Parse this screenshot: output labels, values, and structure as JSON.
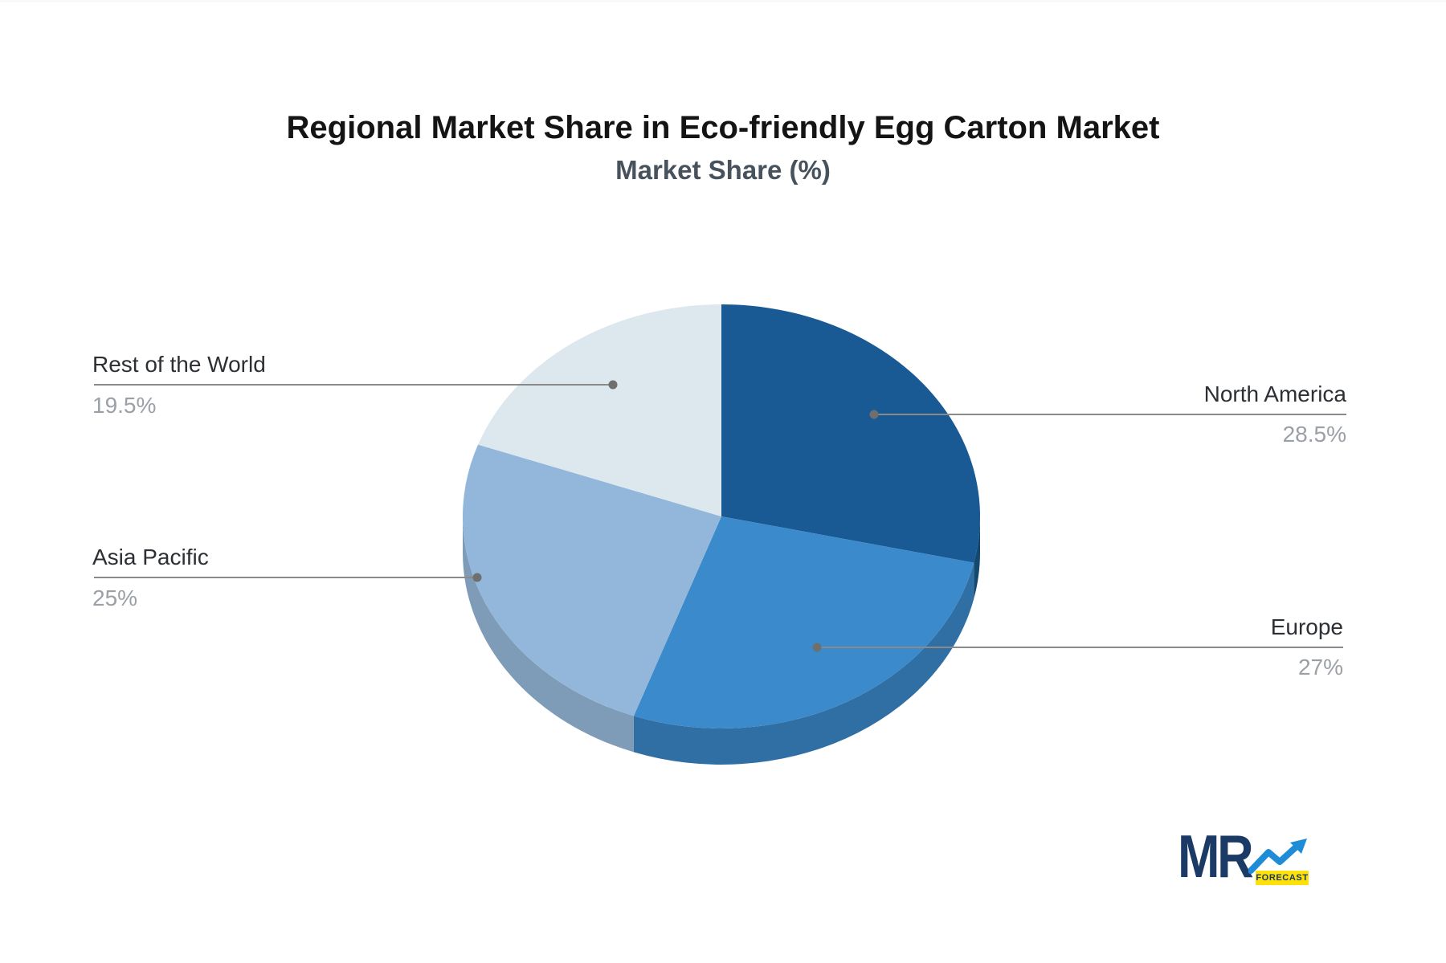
{
  "title": "Regional Market Share in Eco-friendly Egg Carton Market",
  "subtitle": "Market Share (%)",
  "chart_data": {
    "type": "pie",
    "title": "Regional Market Share in Eco-friendly Egg Carton Market",
    "subtitle": "Market Share (%)",
    "unit": "percent",
    "direction": "clockwise",
    "start_angle_deg": 0,
    "effect_3d": true,
    "legend_position": "callout-labels",
    "slices": [
      {
        "label": "North America",
        "value": 28.5,
        "display": "28.5%",
        "color": "#1A5A94",
        "side_color": "#134871"
      },
      {
        "label": "Europe",
        "value": 27,
        "display": "27%",
        "color": "#3B8ACB",
        "side_color": "#2F6FA3"
      },
      {
        "label": "Asia Pacific",
        "value": 25,
        "display": "25%",
        "color": "#92B7DB",
        "side_color": "#7E9CB8"
      },
      {
        "label": "Rest of the World",
        "value": 19.5,
        "display": "19.5%",
        "color": "#DDE7EE",
        "side_color": "#BCC9D4"
      }
    ]
  },
  "leader_color": "#8a8a8a",
  "dot_color": "#6f6f6f",
  "logo": {
    "text": "MR",
    "badge": "FORECAST",
    "navy": "#1C3A66",
    "blue": "#1F8CD8",
    "yellow": "#FFE10A"
  }
}
